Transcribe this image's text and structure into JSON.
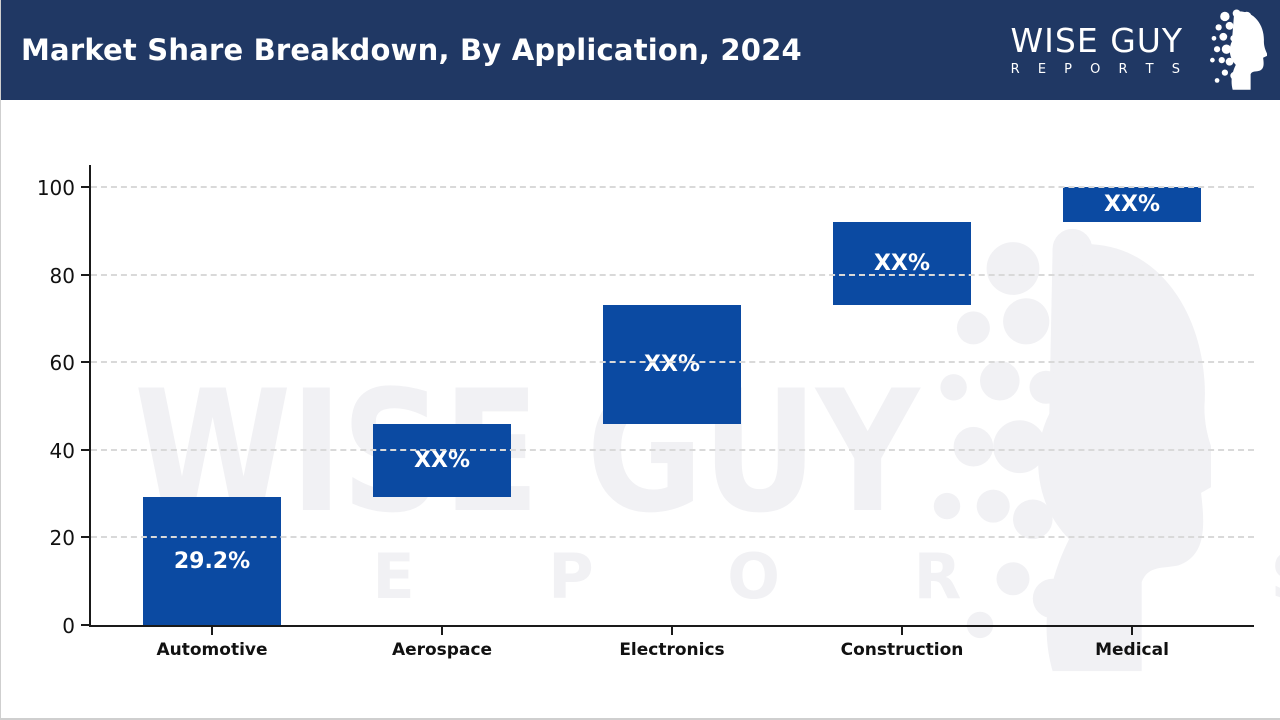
{
  "header": {
    "title": "Market Share Breakdown, By Application, 2024",
    "logo": {
      "name": "WISE GUY",
      "sub": "R E P O R T S"
    }
  },
  "watermark": {
    "name": "WISE GUY",
    "sub": "R E P O R T S"
  },
  "colors": {
    "header_bg": "#203864",
    "bar": "#0b4aa2",
    "bar_label": "#ffffff",
    "grid": "#d9d9d9",
    "axis": "#1a1a1a",
    "text": "#111111",
    "watermark": "#f1f1f4"
  },
  "chart_data": {
    "type": "bar",
    "subtype": "floating-segment breakdown (waterfall-style, cumulative market share)",
    "title": "Market Share Breakdown, By Application, 2024",
    "categories": [
      "Automotive",
      "Aerospace",
      "Electronics",
      "Construction",
      "Medical"
    ],
    "bars": [
      {
        "category": "Automotive",
        "start": 0,
        "end": 29.2,
        "label": "29.2%"
      },
      {
        "category": "Aerospace",
        "start": 29.2,
        "end": 45.9,
        "label": "XX%"
      },
      {
        "category": "Electronics",
        "start": 45.9,
        "end": 73.1,
        "label": "XX%"
      },
      {
        "category": "Construction",
        "start": 73.1,
        "end": 92.0,
        "label": "XX%"
      },
      {
        "category": "Medical",
        "start": 92.0,
        "end": 100,
        "label": "XX%"
      }
    ],
    "yticks": [
      0,
      20,
      40,
      60,
      80,
      100
    ],
    "ylim": [
      0,
      105
    ],
    "xlabel": "",
    "ylabel": "",
    "grid": "dashed horizontal gridlines drawn over bars",
    "legend": "none"
  }
}
